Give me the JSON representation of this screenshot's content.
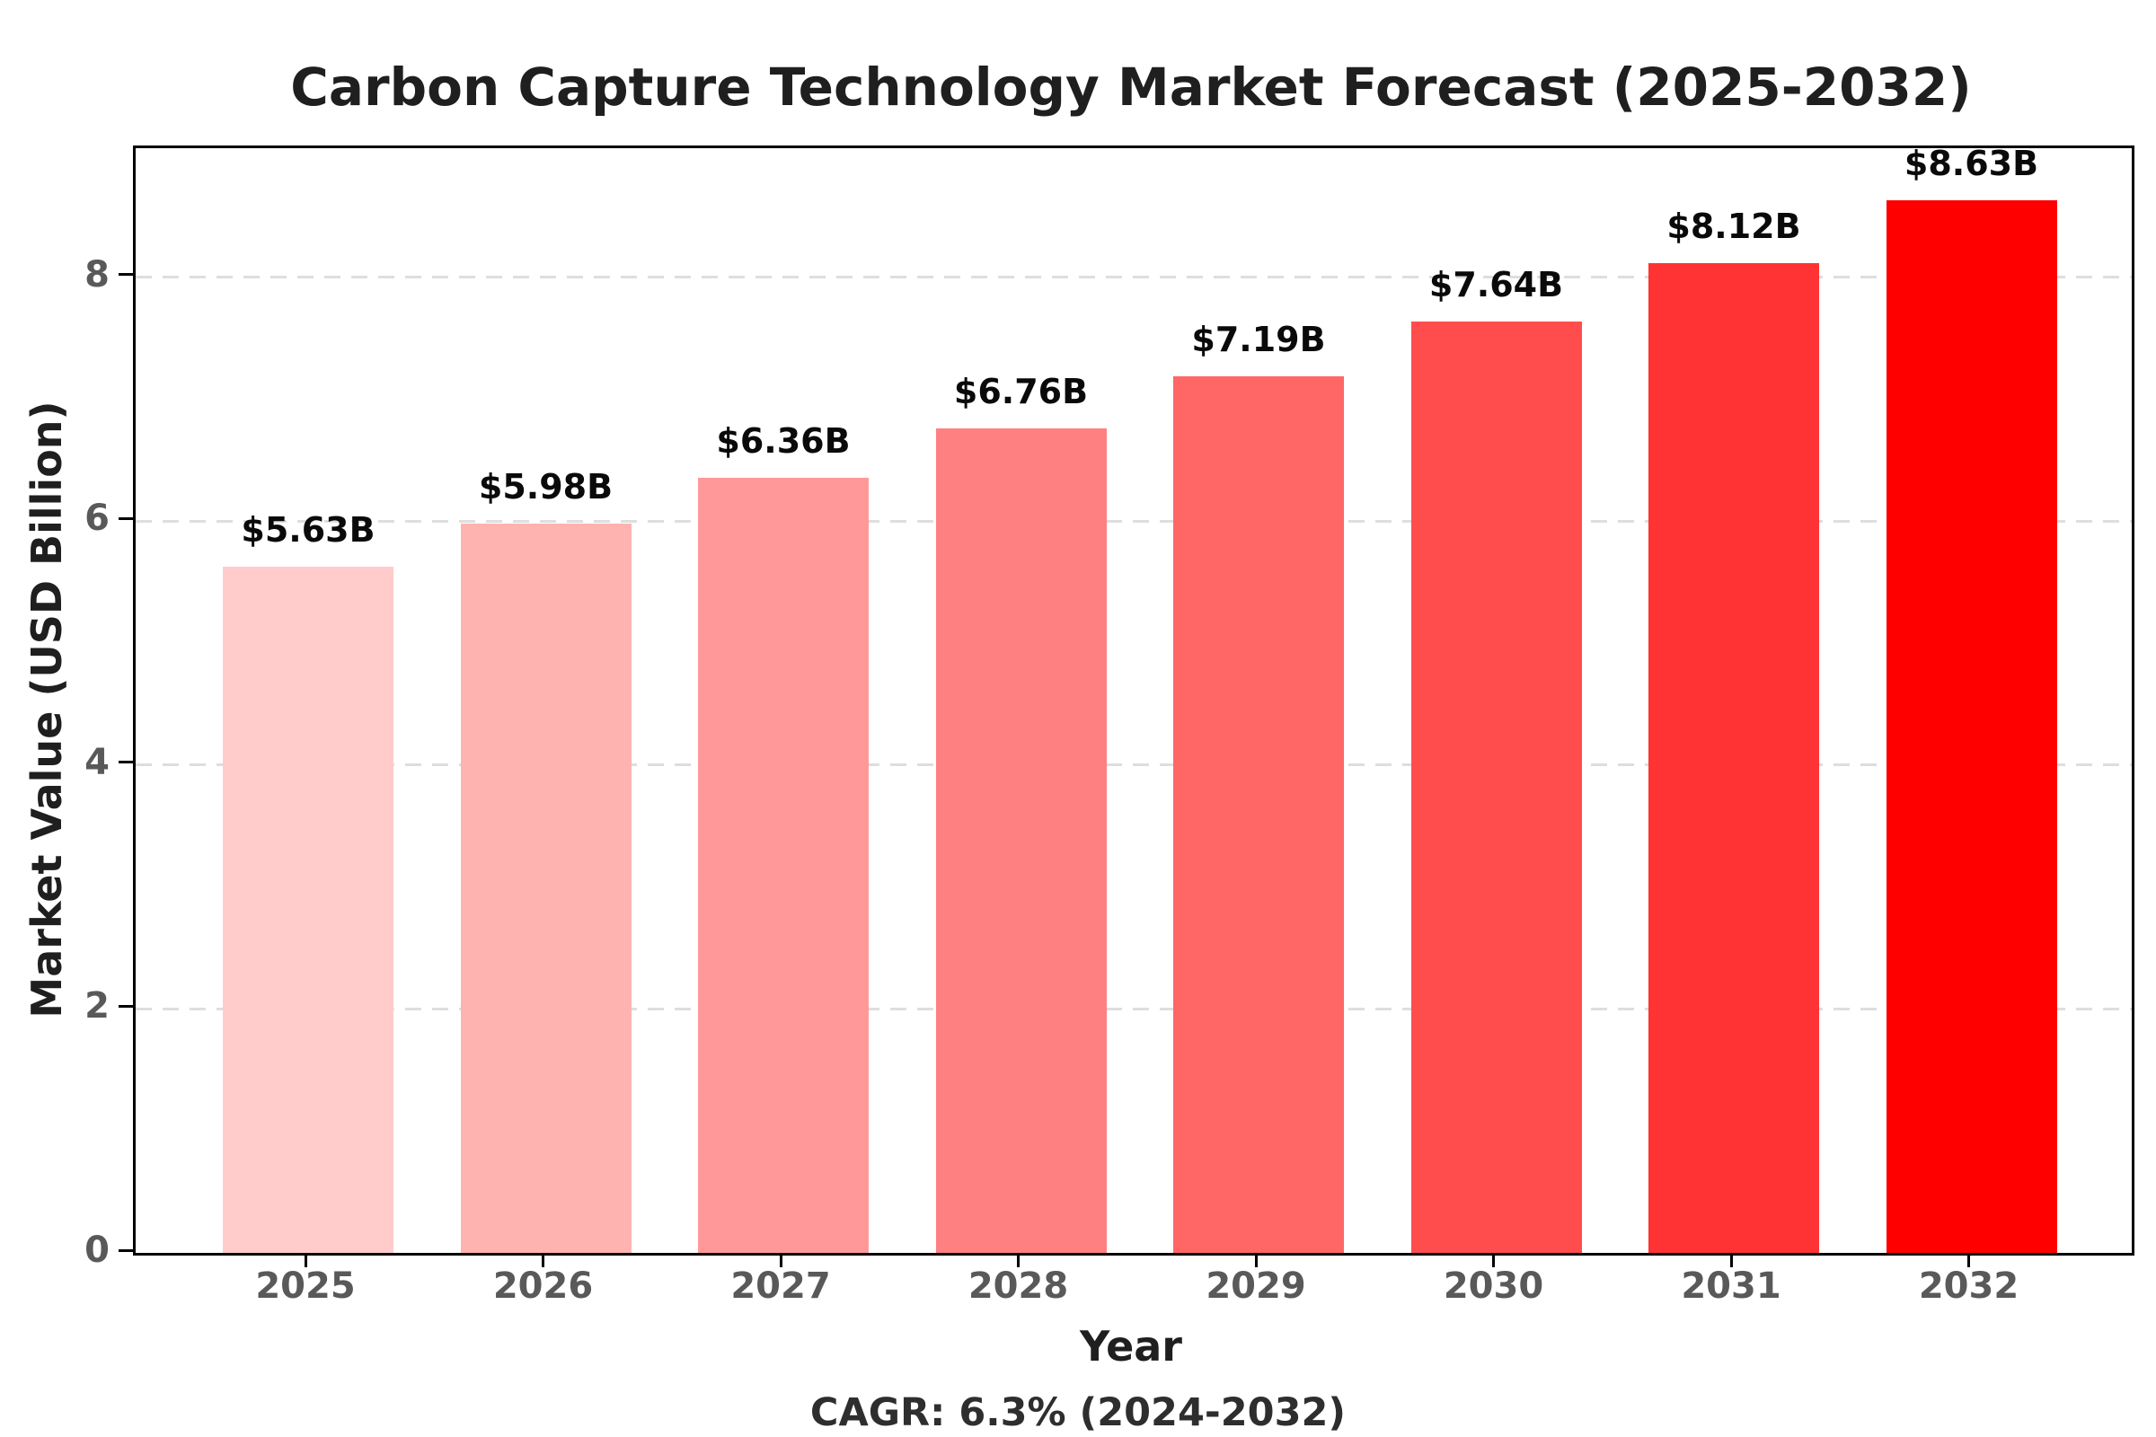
{
  "title": "Carbon Capture Technology Market Forecast (2025-2032)",
  "chart_data": {
    "type": "bar",
    "title": "Carbon Capture Technology Market Forecast (2025-2032)",
    "xlabel": "Year",
    "ylabel": "Market Value (USD Billion)",
    "annotation": "CAGR: 6.3% (2024-2032)",
    "categories": [
      "2025",
      "2026",
      "2027",
      "2028",
      "2029",
      "2030",
      "2031",
      "2032"
    ],
    "values": [
      5.63,
      5.98,
      6.36,
      6.76,
      7.19,
      7.64,
      8.12,
      8.63
    ],
    "bar_labels": [
      "$5.63B",
      "$5.98B",
      "$6.36B",
      "$6.76B",
      "$7.19B",
      "$7.64B",
      "$8.12B",
      "$8.63B"
    ],
    "bar_colors": [
      "#FFCCCB",
      "#FFB3B1",
      "#FF9999",
      "#FF8080",
      "#FF6666",
      "#FF4D4D",
      "#FF3333",
      "#FF0000"
    ],
    "yticks": [
      0,
      2,
      4,
      6,
      8
    ],
    "ylim": [
      0,
      9.06
    ],
    "grid": "dashed-horizontal",
    "legend": "none",
    "colors": {
      "background": "#ffffff",
      "spine": "#000000",
      "gridline": "#dedede",
      "tick_label_text": "#595959",
      "title_text": "#1f1f1f",
      "bar_value_text": "#0a0a0a",
      "annotation_text": "#2e2e2e"
    }
  }
}
